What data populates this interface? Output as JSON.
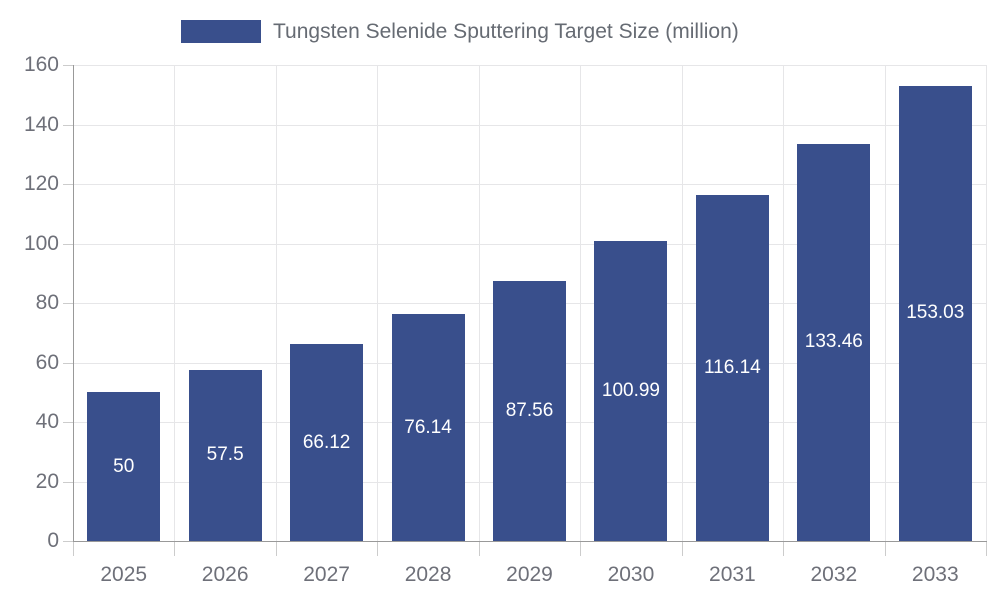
{
  "chart_data": {
    "type": "bar",
    "title": "Tungsten Selenide Sputtering Target Size (million)",
    "legend_position": "top",
    "categories": [
      "2025",
      "2026",
      "2027",
      "2028",
      "2029",
      "2030",
      "2031",
      "2032",
      "2033"
    ],
    "values": [
      50,
      57.5,
      66.12,
      76.14,
      87.56,
      100.99,
      116.14,
      133.46,
      153.03
    ],
    "value_labels": [
      "50",
      "57.5",
      "66.12",
      "76.14",
      "87.56",
      "100.99",
      "116.14",
      "133.46",
      "153.03"
    ],
    "xlabel": "",
    "ylabel": "",
    "ylim": [
      0,
      160
    ],
    "ytick_step": 20,
    "ytick_labels": [
      "0",
      "20",
      "40",
      "60",
      "80",
      "100",
      "120",
      "140",
      "160"
    ],
    "grid": true,
    "colors": {
      "bar": "#394F8C",
      "grid_line": "#E6E6E8",
      "axis_line": "#999999",
      "tick_mark": "#CCCCCC",
      "tick_label": "#6E7079",
      "legend_text": "#666B73",
      "value_label": "#FFFFFF",
      "background": "#FFFFFF"
    }
  }
}
